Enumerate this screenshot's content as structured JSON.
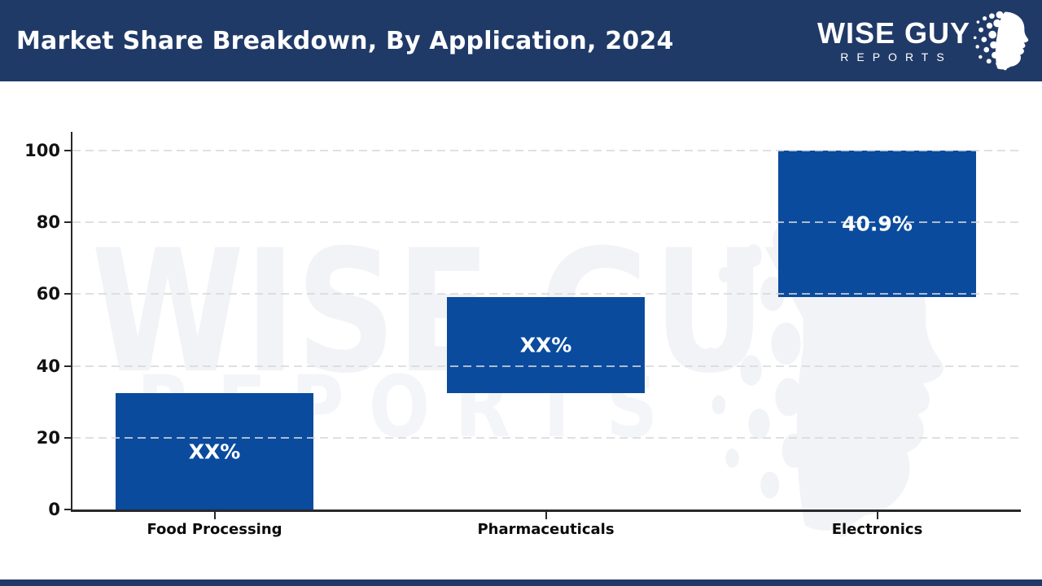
{
  "header": {
    "title": "Market Share Breakdown, By Application, 2024",
    "brand": {
      "line1": "WISE GUY",
      "line2": "REPORTS"
    }
  },
  "watermark": {
    "line1": "WISE GUY",
    "line2": "REPORTS"
  },
  "icons": {
    "brand_head": "head-of-dots-logo"
  },
  "colors": {
    "header_bg": "#203a68",
    "footer_bg": "#203a68",
    "bar": "#0a4b9e",
    "gridline": "#d7d8da",
    "axis": "#27282a",
    "bar_label_text": "#ffffff",
    "watermark_text": "#f2f3f6"
  },
  "chart_data": {
    "type": "bar",
    "subtype": "waterfall-floating-bars",
    "title": "Market Share Breakdown, By Application, 2024",
    "categories": [
      "Food Processing",
      "Pharmaceuticals",
      "Electronics"
    ],
    "segments": [
      {
        "category": "Food Processing",
        "from": 0,
        "to": 32.4,
        "label": "XX%"
      },
      {
        "category": "Pharmaceuticals",
        "from": 32.4,
        "to": 59.1,
        "label": "XX%"
      },
      {
        "category": "Electronics",
        "from": 59.1,
        "to": 100,
        "label": "40.9%"
      }
    ],
    "yticks": [
      0,
      20,
      40,
      60,
      80,
      100
    ],
    "ylim": [
      0,
      105
    ],
    "xlabel": "",
    "ylabel": "",
    "grid": "horizontal-dashed",
    "legend": "none",
    "bar_color": "#0a4b9e"
  }
}
